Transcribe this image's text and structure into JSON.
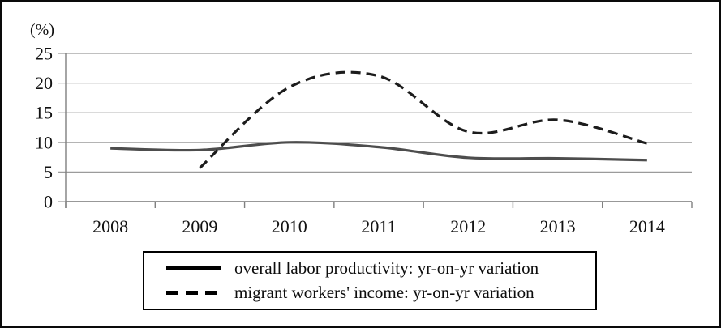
{
  "figure": {
    "background": "#ffffff",
    "border_color": "#0a0a0a",
    "gridline_color": "#9b9b9b",
    "axis_color": "#7f7f7f",
    "text_color": "#111111"
  },
  "chart_data": {
    "type": "line",
    "title": "",
    "xlabel": "",
    "ylabel": "(%)",
    "categories": [
      "2008",
      "2009",
      "2010",
      "2011",
      "2012",
      "2013",
      "2014"
    ],
    "series": [
      {
        "name": "overall labor productivity: yr-on-yr variation",
        "style": "solid",
        "color": "#4d4d4d",
        "values": [
          9.0,
          8.7,
          10.0,
          9.2,
          7.4,
          7.3,
          7.0
        ]
      },
      {
        "name": "migrant workers' income: yr-on-yr variation",
        "style": "dashed",
        "color": "#1c1c1c",
        "values": [
          null,
          5.7,
          19.3,
          21.2,
          11.8,
          13.8,
          9.8
        ]
      }
    ],
    "ylim": [
      0,
      25
    ],
    "y_ticks": [
      0,
      5,
      10,
      15,
      20,
      25
    ],
    "grid": true,
    "legend_position": "bottom-center"
  }
}
